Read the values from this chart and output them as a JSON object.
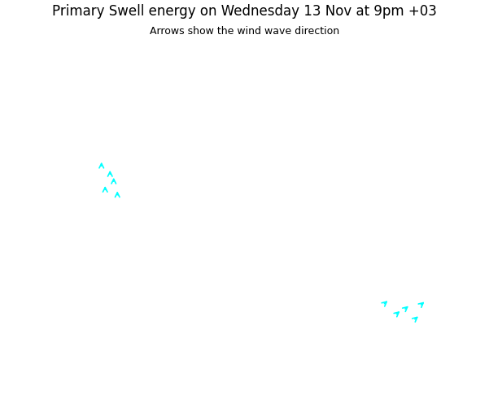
{
  "title": "Primary Swell energy on Wednesday 13 Nov at 9pm +03",
  "subtitle": "Arrows show the wind wave direction",
  "title_fontsize": 12,
  "subtitle_fontsize": 9,
  "fig_width": 6.01,
  "fig_height": 5.07,
  "dpi": 100,
  "header_bg": "#ffffff",
  "map_bg": "#909090",
  "water_color": "#000000",
  "land_color": "#a8a8a8",
  "border_color": "#000000",
  "border_lw": 0.6,
  "lon_min": 25.0,
  "lon_max": 65.0,
  "lat_min": 12.0,
  "lat_max": 48.0,
  "arrow_color": "#00ffff",
  "arrows": [
    {
      "lon": 33.3,
      "lat": 35.5,
      "u": 0.0,
      "v": 1.0
    },
    {
      "lon": 34.0,
      "lat": 34.7,
      "u": 0.0,
      "v": 1.0
    },
    {
      "lon": 34.3,
      "lat": 34.0,
      "u": 0.0,
      "v": 1.0
    },
    {
      "lon": 33.6,
      "lat": 33.2,
      "u": 0.0,
      "v": 1.0
    },
    {
      "lon": 34.6,
      "lat": 32.7,
      "u": 0.0,
      "v": 1.0
    },
    {
      "lon": 56.3,
      "lat": 22.3,
      "u": 0.7,
      "v": 0.7
    },
    {
      "lon": 57.3,
      "lat": 21.3,
      "u": 0.7,
      "v": 0.7
    },
    {
      "lon": 58.0,
      "lat": 21.8,
      "u": 0.7,
      "v": 0.7
    },
    {
      "lon": 58.8,
      "lat": 20.8,
      "u": 0.7,
      "v": 0.7
    },
    {
      "lon": 59.3,
      "lat": 22.2,
      "u": 0.7,
      "v": 0.7
    }
  ]
}
